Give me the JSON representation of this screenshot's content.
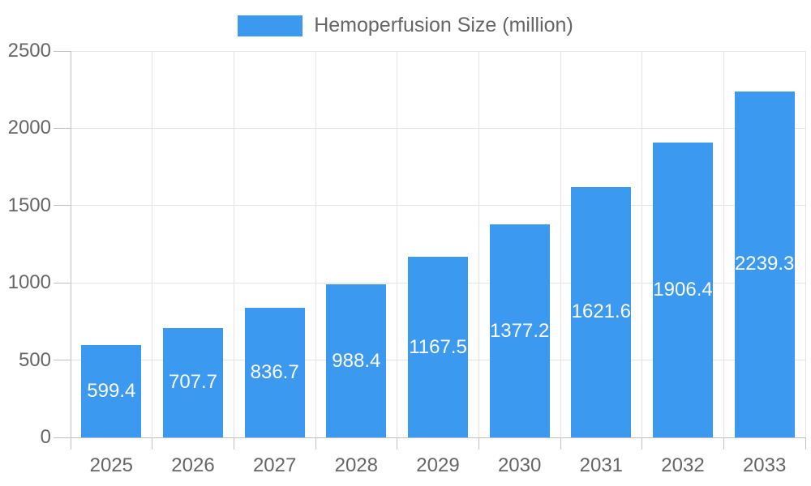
{
  "legend": {
    "label": "Hemoperfusion Size (million)"
  },
  "colors": {
    "bar": "#3B99F0",
    "grid": "#E4E4E4",
    "axis": "#C2C2C2",
    "label_text": "#666666",
    "value_text": "#FFFFFF",
    "background": "#FFFFFF"
  },
  "chart_data": {
    "type": "bar",
    "title": "Hemoperfusion Size (million)",
    "categories": [
      "2025",
      "2026",
      "2027",
      "2028",
      "2029",
      "2030",
      "2031",
      "2032",
      "2033"
    ],
    "values": [
      599.4,
      707.7,
      836.7,
      988.4,
      1167.5,
      1377.2,
      1621.6,
      1906.4,
      2239.3
    ],
    "value_labels": [
      "599.4",
      "707.7",
      "836.7",
      "988.4",
      "1167.5",
      "1377.2",
      "1621.6",
      "1906.4",
      "2239.3"
    ],
    "xlabel": "",
    "ylabel": "",
    "ylim": [
      0,
      2500
    ],
    "yticks": [
      0,
      500,
      1000,
      1500,
      2000,
      2500
    ],
    "ytick_labels": [
      "0",
      "500",
      "1000",
      "1500",
      "2000",
      "2500"
    ],
    "grid": true,
    "legend_position": "top-center",
    "value_label_position": "inside-center"
  }
}
